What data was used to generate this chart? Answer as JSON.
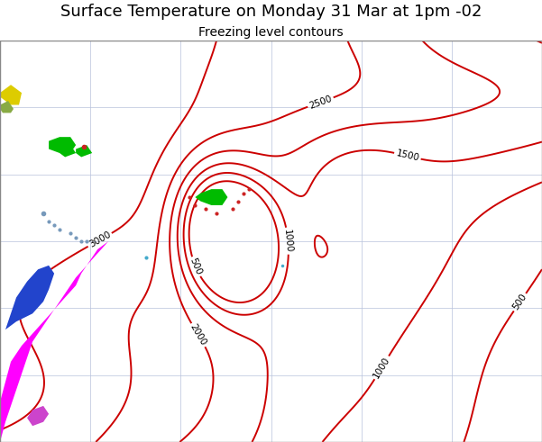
{
  "title": "Surface Temperature on Monday 31 Mar at 1pm -02",
  "subtitle": "Freezing level contours",
  "title_fontsize": 13,
  "subtitle_fontsize": 10,
  "ocean_color": "#c8cfe8",
  "land_magenta": "#ff00ff",
  "land_green": "#00bb00",
  "land_yellow": "#ddcc00",
  "land_blue": "#2244cc",
  "contour_color": "#cc0000",
  "contour_linewidth": 1.4,
  "contour_levels": [
    500,
    1000,
    1500,
    2000,
    2500,
    3000
  ],
  "grid_color": "#b8c2dc",
  "title_bg": "#ffffff",
  "fig_width": 6.01,
  "fig_height": 4.91
}
